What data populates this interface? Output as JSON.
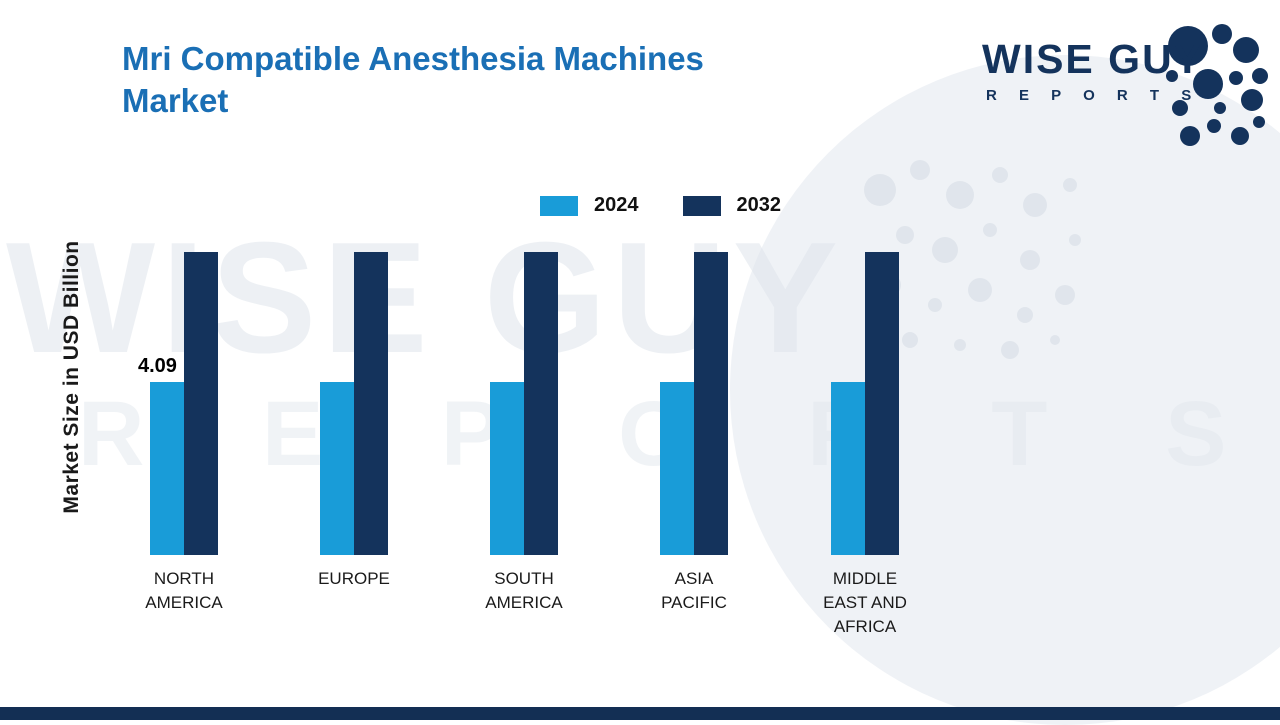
{
  "title": "Mri Compatible Anesthesia Machines Market",
  "logo": {
    "line1": "WISE GUY",
    "line2": "R E P O R T S"
  },
  "watermark": {
    "line1": "WISE GUY",
    "line2": "R E P O R T S"
  },
  "ylabel": "Market Size in USD Billion",
  "value_label": "4.09",
  "colors": {
    "title_blue": "#1a6fb5",
    "series_2024": "#199cd8",
    "series_2032": "#14335c",
    "bottom_bar": "#132f54"
  },
  "chart_data": {
    "type": "bar",
    "title": "Mri Compatible Anesthesia Machines Market",
    "xlabel": "",
    "ylabel": "Market Size in USD Billion",
    "categories": [
      "NORTH AMERICA",
      "EUROPE",
      "SOUTH AMERICA",
      "ASIA PACIFIC",
      "MIDDLE EAST AND AFRICA"
    ],
    "series": [
      {
        "name": "2024",
        "color": "#199cd8",
        "values": [
          4.09,
          4.09,
          4.09,
          4.09,
          4.09
        ]
      },
      {
        "name": "2032",
        "color": "#14335c",
        "values": [
          7.16,
          7.16,
          7.16,
          7.16,
          7.16
        ]
      }
    ],
    "ylim": [
      0,
      8
    ],
    "grid": false,
    "legend_position": "top",
    "data_labels": [
      {
        "series": "2024",
        "category": "NORTH AMERICA",
        "text": "4.09"
      }
    ]
  }
}
